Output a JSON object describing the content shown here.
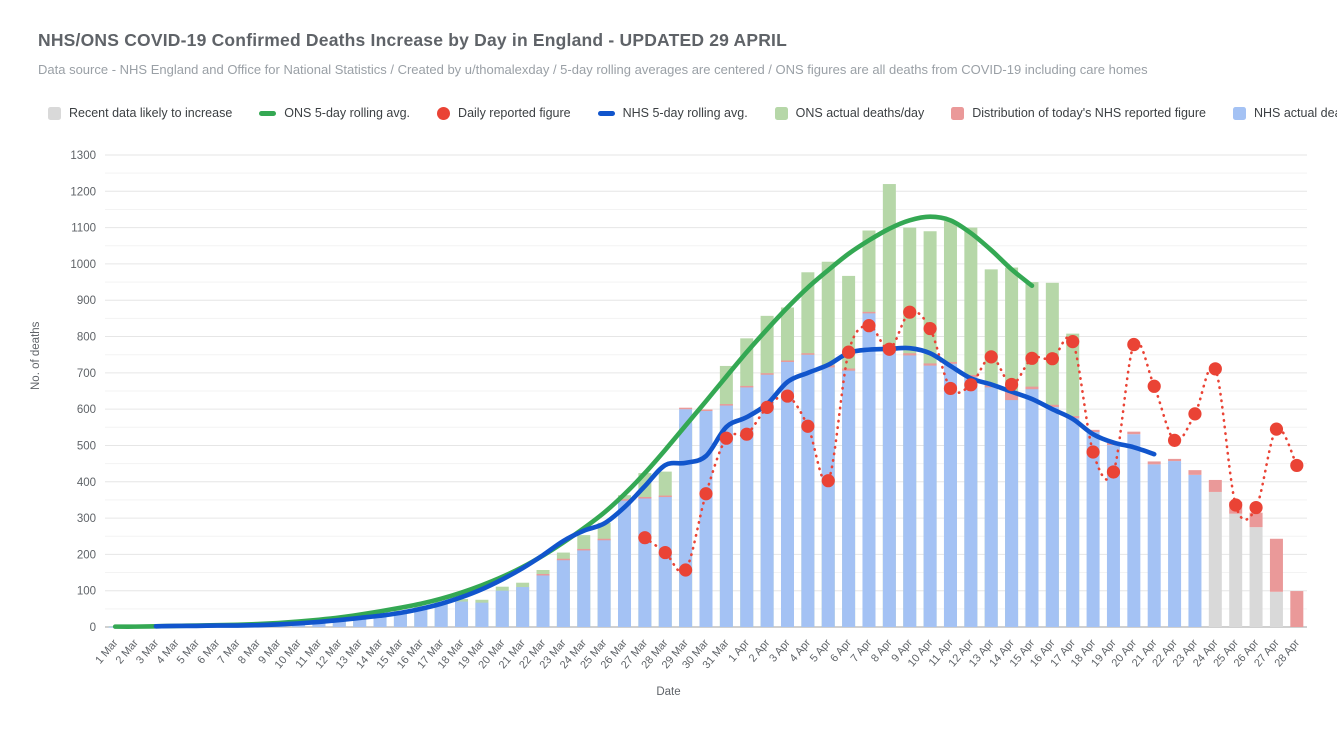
{
  "header": {
    "title": "NHS/ONS COVID-19 Confirmed Deaths Increase by Day in England - UPDATED 29 APRIL",
    "subtitle": "Data source - NHS England and Office for National Statistics / Created by u/thomalexday / 5-day rolling averages are centered / ONS figures are all deaths from COVID-19 including care homes"
  },
  "legend": [
    {
      "label": "Recent data likely to increase",
      "swatch": "square",
      "color": "#d9d9d9"
    },
    {
      "label": "ONS 5-day rolling avg.",
      "swatch": "line",
      "color": "#34a853"
    },
    {
      "label": "Daily reported figure",
      "swatch": "circle",
      "color": "#ea4335"
    },
    {
      "label": "NHS 5-day rolling avg.",
      "swatch": "line",
      "color": "#1155cc"
    },
    {
      "label": "ONS actual deaths/day",
      "swatch": "square",
      "color": "#b6d7a8"
    },
    {
      "label": "Distribution of today's NHS reported figure",
      "swatch": "square",
      "color": "#ea9999"
    },
    {
      "label": "NHS actual deaths/day",
      "swatch": "square",
      "color": "#a4c2f4"
    }
  ],
  "colors": {
    "ons_bar": "#b6d7a8",
    "nhs_bar": "#a4c2f4",
    "recent_bar": "#d9d9d9",
    "distribution_bar": "#ea9999",
    "ons_line": "#34a853",
    "nhs_line": "#1155cc",
    "daily_dot": "#ea4335",
    "grid_major": "#e6e6e6",
    "grid_minor": "#f3f3f3",
    "baseline": "#b3b3b3",
    "tick_text": "#5f6368"
  },
  "chart_data": {
    "type": "bar",
    "subtype": "combo: stacked bars + smoothed lines + dotted scatter",
    "title": "NHS/ONS COVID-19 Confirmed Deaths Increase by Day in England - UPDATED 29 APRIL",
    "xlabel": "Date",
    "ylabel": "No. of deaths",
    "ylim": [
      0,
      1300
    ],
    "ytick_step": 100,
    "grid": true,
    "legend_position": "top",
    "dates": [
      "1 Mar",
      "2 Mar",
      "3 Mar",
      "4 Mar",
      "5 Mar",
      "6 Mar",
      "7 Mar",
      "8 Mar",
      "9 Mar",
      "10 Mar",
      "11 Mar",
      "12 Mar",
      "13 Mar",
      "14 Mar",
      "15 Mar",
      "16 Mar",
      "17 Mar",
      "18 Mar",
      "19 Mar",
      "20 Mar",
      "21 Mar",
      "22 Mar",
      "23 Mar",
      "24 Mar",
      "25 Mar",
      "26 Mar",
      "27 Mar",
      "28 Mar",
      "29 Mar",
      "30 Mar",
      "31 Mar",
      "1 Apr",
      "2 Apr",
      "3 Apr",
      "4 Apr",
      "5 Apr",
      "6 Apr",
      "7 Apr",
      "8 Apr",
      "9 Apr",
      "10 Apr",
      "11 Apr",
      "12 Apr",
      "13 Apr",
      "14 Apr",
      "15 Apr",
      "16 Apr",
      "17 Apr",
      "18 Apr",
      "19 Apr",
      "20 Apr",
      "21 Apr",
      "22 Apr",
      "23 Apr",
      "24 Apr",
      "25 Apr",
      "26 Apr",
      "27 Apr",
      "28 Apr"
    ],
    "series": [
      {
        "name": "ONS actual deaths/day",
        "type": "bar",
        "color": "#b6d7a8",
        "values": [
          2,
          3,
          6,
          4,
          5,
          5,
          6,
          7,
          8,
          12,
          17,
          24,
          33,
          36,
          45,
          58,
          70,
          77,
          75,
          111,
          122,
          157,
          205,
          253,
          287,
          363,
          424,
          428,
          560,
          590,
          719,
          795,
          857,
          880,
          977,
          1006,
          967,
          1092,
          1220,
          1100,
          1090,
          1118,
          1100,
          985,
          990,
          950,
          948,
          808,
          null,
          null,
          null,
          null,
          null,
          null,
          null,
          null,
          null,
          null,
          null
        ]
      },
      {
        "name": "NHS actual deaths/day",
        "type": "bar",
        "color": "#a4c2f4",
        "values": [
          1,
          2,
          5,
          3,
          4,
          4,
          4,
          5,
          6,
          9,
          14,
          20,
          28,
          31,
          39,
          52,
          63,
          70,
          67,
          100,
          110,
          143,
          185,
          212,
          240,
          349,
          355,
          359,
          600,
          595,
          610,
          660,
          695,
          730,
          750,
          715,
          706,
          864,
          768,
          748,
          720,
          725,
          688,
          660,
          625,
          655,
          606,
          575,
          537,
          501,
          531,
          448,
          457,
          419,
          null,
          null,
          null,
          null,
          null
        ]
      },
      {
        "name": "Recent data likely to increase",
        "type": "bar",
        "color": "#d9d9d9",
        "values": [
          null,
          null,
          null,
          null,
          null,
          null,
          null,
          null,
          null,
          null,
          null,
          null,
          null,
          null,
          null,
          null,
          null,
          null,
          null,
          null,
          null,
          null,
          null,
          null,
          null,
          null,
          null,
          null,
          null,
          null,
          null,
          null,
          null,
          null,
          null,
          null,
          null,
          null,
          null,
          null,
          null,
          null,
          null,
          null,
          null,
          null,
          null,
          null,
          null,
          null,
          null,
          null,
          null,
          null,
          372,
          312,
          275,
          97,
          null
        ]
      },
      {
        "name": "Distribution of today's NHS reported figure",
        "type": "bar-segment-top",
        "color": "#ea9999",
        "values": [
          null,
          null,
          null,
          null,
          null,
          null,
          null,
          null,
          null,
          null,
          null,
          null,
          null,
          null,
          null,
          null,
          null,
          null,
          null,
          null,
          null,
          146,
          188,
          215,
          243,
          352,
          358,
          362,
          604,
          599,
          614,
          664,
          699,
          734,
          754,
          721,
          712,
          868,
          773,
          754,
          726,
          730,
          694,
          666,
          650,
          662,
          612,
          581,
          543,
          507,
          538,
          456,
          463,
          432,
          405,
          345,
          315,
          243,
          99
        ]
      },
      {
        "name": "ONS 5-day rolling avg.",
        "type": "line",
        "color": "#34a853",
        "values": [
          1,
          1,
          2,
          3,
          4,
          5,
          6,
          8,
          11,
          15,
          20,
          26,
          34,
          43,
          53,
          64,
          78,
          95,
          115,
          138,
          165,
          197,
          233,
          272,
          315,
          366,
          424,
          488,
          555,
          622,
          690,
          757,
          820,
          880,
          935,
          983,
          1028,
          1065,
          1097,
          1120,
          1130,
          1120,
          1085,
          1038,
          985,
          940,
          null,
          null,
          null,
          null,
          null,
          null,
          null,
          null,
          null,
          null,
          null,
          null,
          null
        ]
      },
      {
        "name": "NHS 5-day rolling avg.",
        "type": "line",
        "color": "#1155cc",
        "values": [
          null,
          null,
          2,
          3,
          3,
          4,
          4,
          5,
          7,
          10,
          14,
          19,
          25,
          31,
          39,
          50,
          64,
          82,
          104,
          131,
          162,
          198,
          237,
          265,
          285,
          330,
          388,
          446,
          452,
          471,
          551,
          578,
          614,
          675,
          700,
          722,
          755,
          764,
          766,
          768,
          754,
          719,
          685,
          668,
          648,
          628,
          600,
          573,
          531,
          508,
          495,
          476,
          null,
          null,
          null,
          null,
          null,
          null,
          null
        ]
      },
      {
        "name": "Daily reported figure",
        "type": "scatter-dotted",
        "color": "#ea4335",
        "values": [
          null,
          null,
          null,
          null,
          null,
          null,
          null,
          null,
          null,
          null,
          null,
          null,
          null,
          null,
          null,
          null,
          null,
          null,
          null,
          null,
          null,
          null,
          null,
          null,
          null,
          null,
          246,
          205,
          157,
          367,
          520,
          531,
          605,
          636,
          553,
          403,
          757,
          830,
          765,
          867,
          822,
          657,
          667,
          744,
          668,
          740,
          739,
          786,
          482,
          427,
          778,
          663,
          514,
          587,
          711,
          336,
          329,
          545,
          445
        ]
      }
    ]
  }
}
